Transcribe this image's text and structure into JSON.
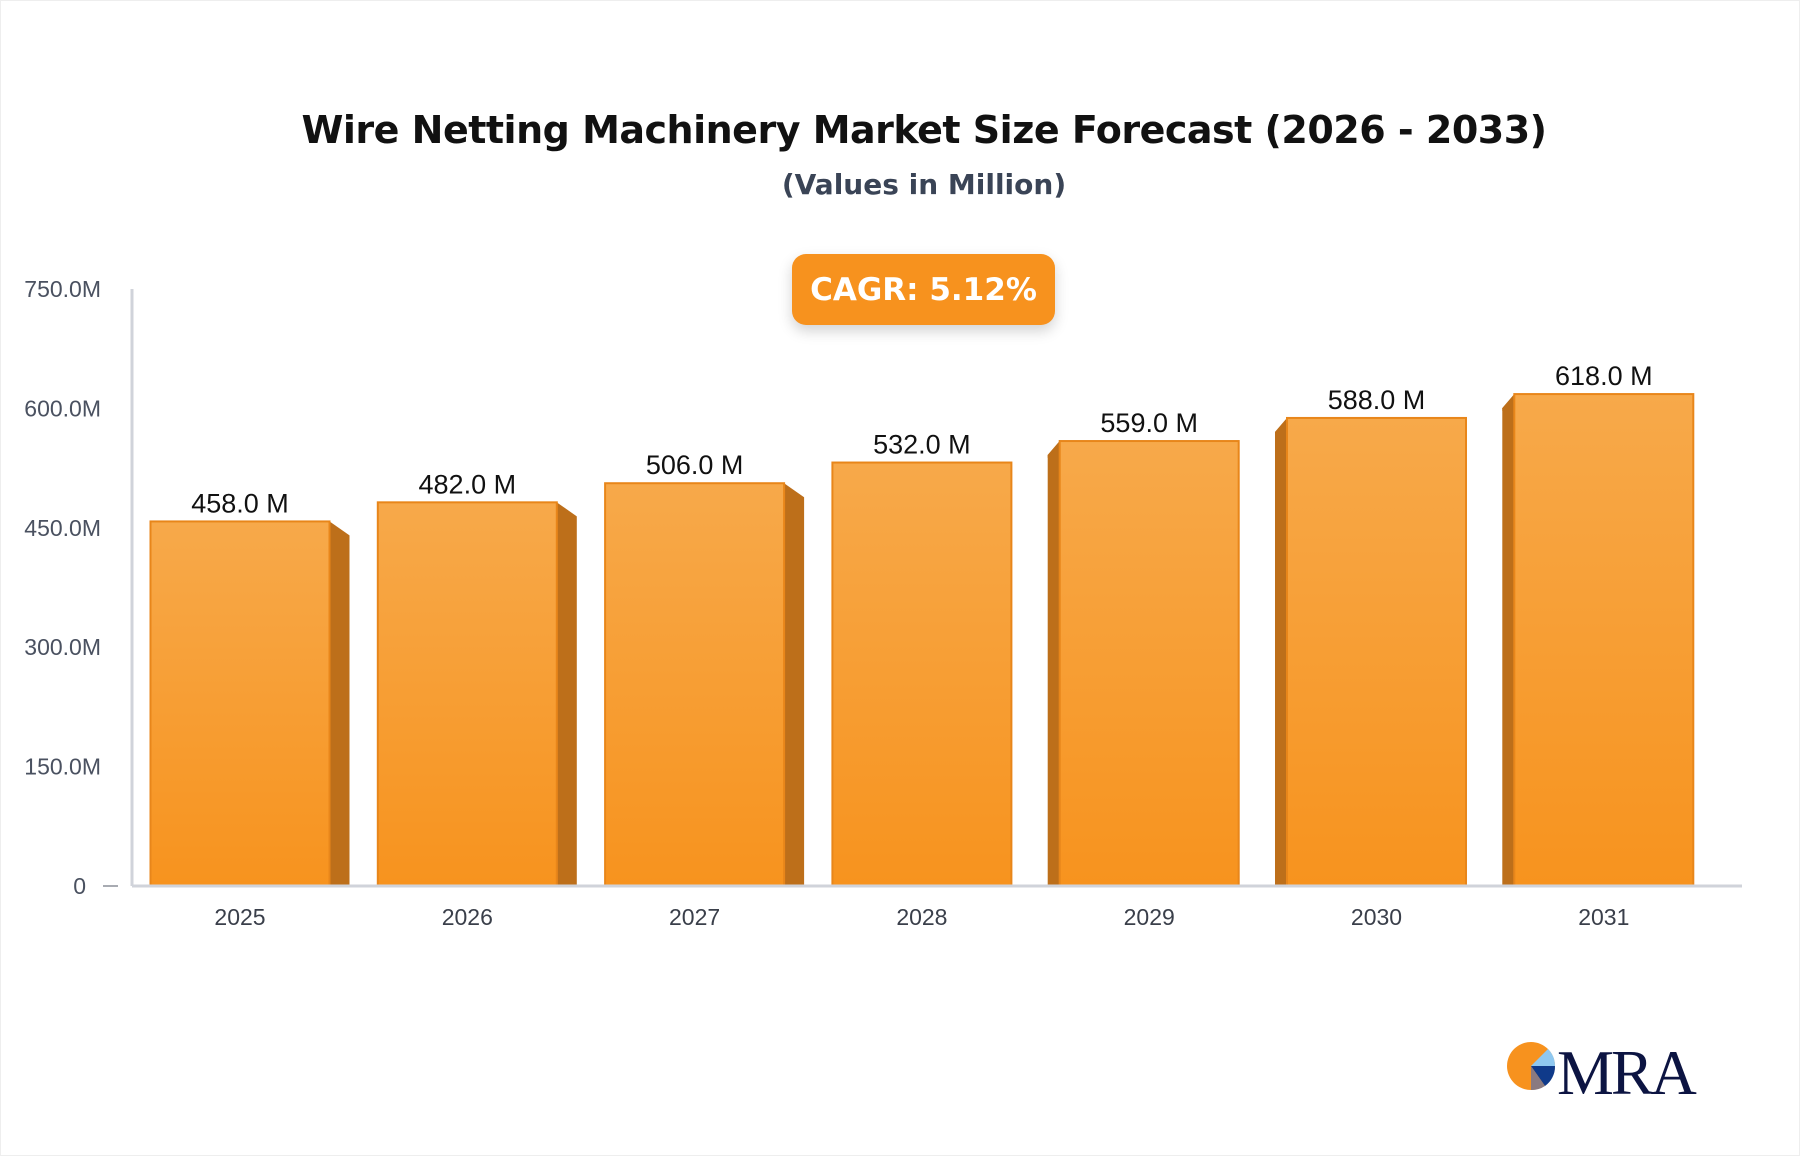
{
  "chart_data": {
    "type": "bar",
    "title": "Wire Netting Machinery Market Size Forecast (2026 - 2033)",
    "subtitle": "(Values in Million)",
    "categories": [
      "2025",
      "2026",
      "2027",
      "2028",
      "2029",
      "2030",
      "2031"
    ],
    "values": [
      458.0,
      482.0,
      506.0,
      532.0,
      559.0,
      588.0,
      618.0
    ],
    "data_labels": [
      "458.0 M",
      "482.0 M",
      "506.0 M",
      "532.0 M",
      "559.0 M",
      "588.0 M",
      "618.0 M"
    ],
    "ylim": [
      0,
      750
    ],
    "yticks": [
      0,
      150,
      300,
      450,
      600,
      750
    ],
    "ytick_labels": [
      "0",
      "150.0M",
      "300.0M",
      "450.0M",
      "600.0M",
      "750.0M"
    ],
    "xlabel": "",
    "ylabel": "",
    "grid": false,
    "annotation": "CAGR: 5.12%",
    "colors": {
      "bar_top": "#f7a94a",
      "bar_bottom": "#f7931e",
      "bar_side": "#bd6f1a",
      "badge": "#f7921e",
      "axis": "#d0d3da"
    }
  },
  "logo": {
    "text": "MRA"
  }
}
